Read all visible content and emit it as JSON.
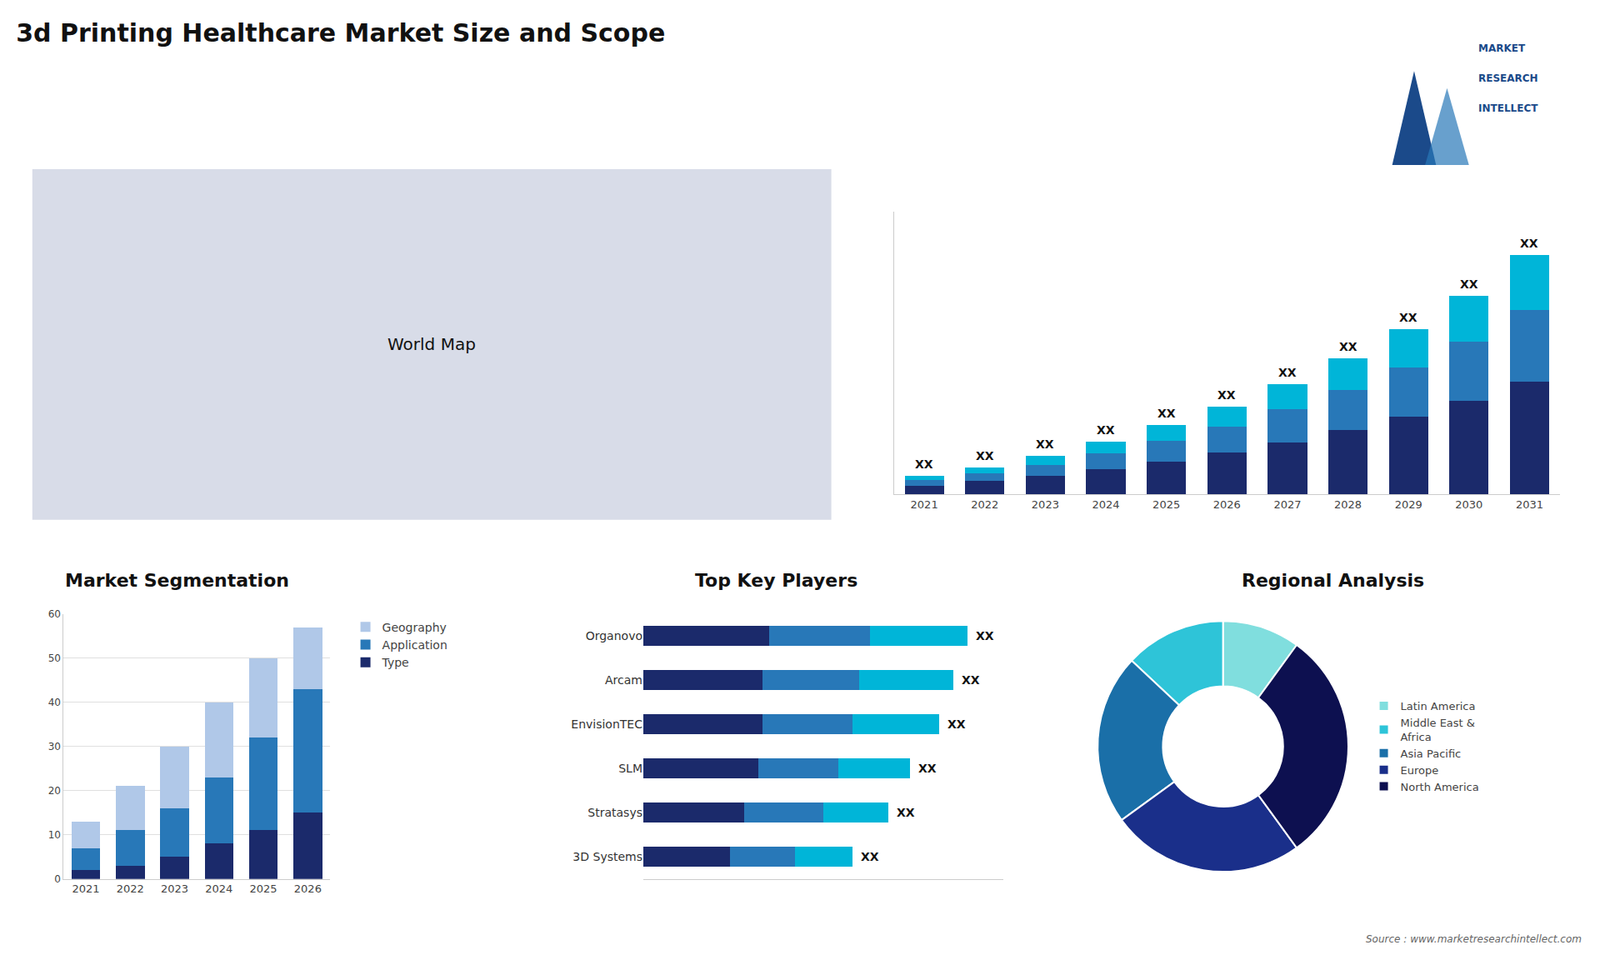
{
  "title": "3d Printing Healthcare Market Size and Scope",
  "annotations": [
    "World Map"
  ],
  "logo": [
    "MARKET",
    "RESEARCH",
    "INTELLECT"
  ],
  "source": "Source : www.marketresearchintellect.com",
  "chart_data": [
    {
      "type": "bar",
      "stacked": true,
      "categories": [
        "2021",
        "2022",
        "2023",
        "2024",
        "2025",
        "2026",
        "2027",
        "2028",
        "2029",
        "2030",
        "2031"
      ],
      "series": [
        {
          "color": "#1b2a6b",
          "values": [
            1.0,
            1.5,
            2.1,
            2.9,
            3.8,
            4.8,
            6.0,
            7.4,
            9.0,
            10.8,
            13.0
          ]
        },
        {
          "color": "#2878b8",
          "values": [
            0.6,
            0.9,
            1.3,
            1.8,
            2.4,
            3.0,
            3.8,
            4.7,
            5.7,
            6.9,
            8.3
          ]
        },
        {
          "color": "#00b5d8",
          "values": [
            0.5,
            0.7,
            1.0,
            1.4,
            1.8,
            2.3,
            2.9,
            3.6,
            4.4,
            5.3,
            6.4
          ]
        }
      ],
      "ylim": [
        0,
        32.686
      ],
      "yticks": [],
      "tick_labels": "x",
      "grid": false,
      "annotations": [
        "XX",
        "XX",
        "XX",
        "XX",
        "XX",
        "XX",
        "XX",
        "XX",
        "XX",
        "XX",
        "XX"
      ]
    },
    {
      "type": "bar",
      "stacked": true,
      "title": "Market Segmentation",
      "categories": [
        "2021",
        "2022",
        "2023",
        "2024",
        "2025",
        "2026"
      ],
      "series": [
        {
          "name": "Type",
          "color": "#1b2a6b",
          "values": [
            2,
            3,
            5,
            8,
            11,
            15
          ]
        },
        {
          "name": "Application",
          "color": "#2878b8",
          "values": [
            5,
            8,
            11,
            15,
            21,
            28
          ]
        },
        {
          "name": "Geography",
          "color": "#b0c8e8",
          "values": [
            6,
            10,
            14,
            17,
            18,
            14
          ]
        }
      ],
      "ylim": [
        0,
        60
      ],
      "yticks": [
        0,
        10,
        20,
        30,
        40,
        50,
        60
      ],
      "grid": true,
      "legend": "right"
    },
    {
      "type": "bar",
      "orientation": "horizontal",
      "stacked": true,
      "title": "Top Key Players",
      "categories": [
        "Organovo",
        "Arcam",
        "EnvisionTEC",
        "SLM",
        "Stratasys",
        "3D Systems"
      ],
      "series": [
        {
          "color": "#1b2a6b",
          "values": [
            0.35,
            0.33,
            0.33,
            0.32,
            0.28,
            0.24
          ]
        },
        {
          "color": "#2878b8",
          "values": [
            0.28,
            0.27,
            0.25,
            0.22,
            0.22,
            0.18
          ]
        },
        {
          "color": "#00b5d8",
          "values": [
            0.27,
            0.26,
            0.24,
            0.2,
            0.18,
            0.16
          ]
        }
      ],
      "xlim": [
        0,
        1
      ],
      "xticks": [],
      "tick_labels": "y",
      "grid": false,
      "annotations": [
        "XX",
        "XX",
        "XX",
        "XX",
        "XX",
        "XX"
      ]
    },
    {
      "type": "pie",
      "title": "Regional Analysis",
      "categories": [
        "Latin America",
        "Middle East &\nAfrica",
        "Asia Pacific",
        "Europe",
        "North America"
      ],
      "values": [
        0.1,
        0.13,
        0.22,
        0.25,
        0.3
      ],
      "colors": [
        "#80dede",
        "#2ec4d8",
        "#1a6fa8",
        "#1a2f8a",
        "#0d1050"
      ],
      "legend": "right"
    }
  ]
}
